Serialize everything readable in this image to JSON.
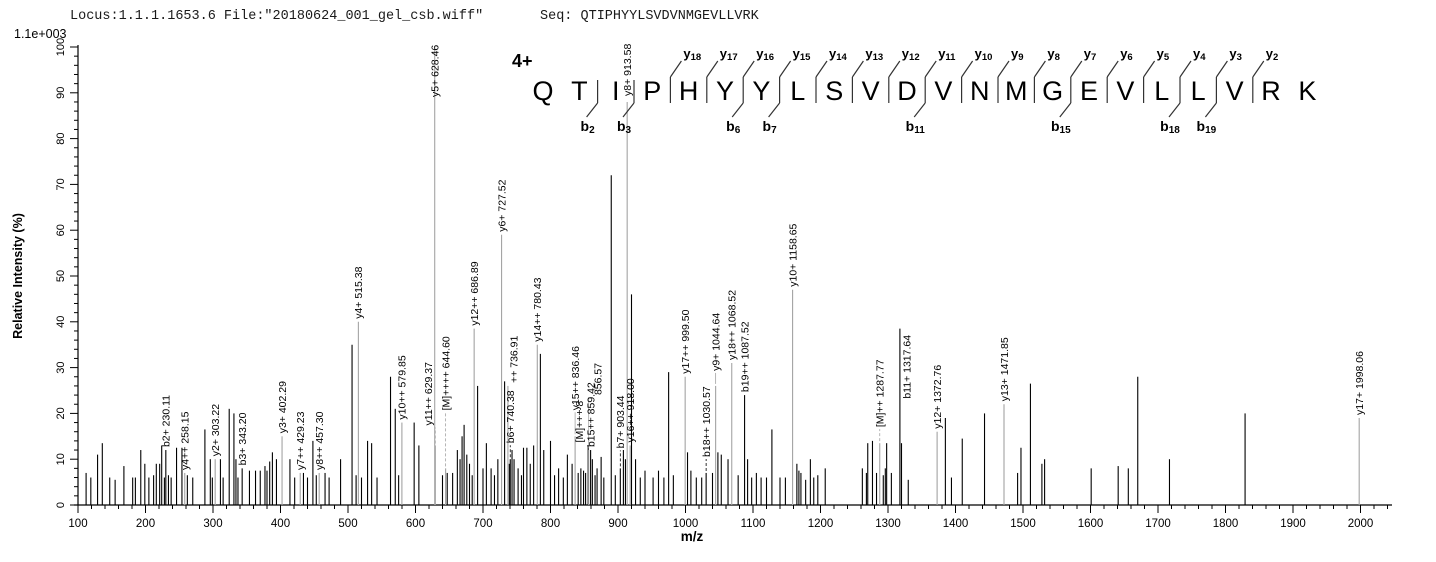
{
  "header": {
    "locus": "Locus:1.1.1.1653.6 File:\"20180624_001_gel_csb.wiff\"",
    "seq": "Seq: QTIPHYYLSVDVNMGEVLLVRK"
  },
  "scale_label": "1.1e+003",
  "charge_label": "4+",
  "sequence": {
    "residues": [
      "Q",
      "T",
      "I",
      "P",
      "H",
      "Y",
      "Y",
      "L",
      "S",
      "V",
      "D",
      "V",
      "N",
      "M",
      "G",
      "E",
      "V",
      "L",
      "L",
      "V",
      "R",
      "K"
    ],
    "y_ions": [
      {
        "n": 18,
        "gap": 3
      },
      {
        "n": 17,
        "gap": 4
      },
      {
        "n": 16,
        "gap": 5
      },
      {
        "n": 15,
        "gap": 6
      },
      {
        "n": 14,
        "gap": 7
      },
      {
        "n": 13,
        "gap": 8
      },
      {
        "n": 12,
        "gap": 9
      },
      {
        "n": 11,
        "gap": 10
      },
      {
        "n": 10,
        "gap": 11
      },
      {
        "n": 9,
        "gap": 12
      },
      {
        "n": 8,
        "gap": 13
      },
      {
        "n": 7,
        "gap": 14
      },
      {
        "n": 6,
        "gap": 15
      },
      {
        "n": 5,
        "gap": 16
      },
      {
        "n": 4,
        "gap": 17
      },
      {
        "n": 3,
        "gap": 18
      },
      {
        "n": 2,
        "gap": 19
      }
    ],
    "b_ions": [
      {
        "n": 2,
        "gap": 1
      },
      {
        "n": 3,
        "gap": 2
      },
      {
        "n": 6,
        "gap": 5
      },
      {
        "n": 7,
        "gap": 6
      },
      {
        "n": 11,
        "gap": 10
      },
      {
        "n": 15,
        "gap": 14
      },
      {
        "n": 18,
        "gap": 17
      },
      {
        "n": 19,
        "gap": 18
      }
    ]
  },
  "chart_data": {
    "type": "bar",
    "xlabel": "m/z",
    "ylabel": "Relative  Intensity (%)",
    "xlim": [
      100,
      2040
    ],
    "ylim": [
      0,
      100
    ],
    "x_major": 100,
    "x_minor": 20,
    "y_major": 10,
    "y_minor": 2,
    "colors": {
      "b_ion": "#000000",
      "y_ion": "#a3a3a3"
    },
    "peaks": [
      {
        "m": 230.11,
        "i": 12,
        "c": "k",
        "l": "b2+ 230.11"
      },
      {
        "m": 258.15,
        "i": 7,
        "c": "g",
        "l": "y4++ 258.15"
      },
      {
        "m": 303.22,
        "i": 10,
        "c": "g",
        "l": "y2+ 303.22"
      },
      {
        "m": 343.2,
        "i": 8,
        "c": "k",
        "l": "b3+ 343.20"
      },
      {
        "m": 402.29,
        "i": 15,
        "c": "g",
        "l": "y3+ 402.29"
      },
      {
        "m": 429.23,
        "i": 7,
        "c": "g",
        "l": "y7++ 429.23"
      },
      {
        "m": 457.3,
        "i": 7,
        "c": "g",
        "l": "y8++ 457.30"
      },
      {
        "m": 515.38,
        "i": 40,
        "c": "g",
        "l": "y4+ 515.38"
      },
      {
        "m": 579.85,
        "i": 18,
        "c": "g",
        "l": "y10++ 579.85"
      },
      {
        "m": 628.46,
        "i": 100,
        "c": "g",
        "l": "y5+ 628.46",
        "lift": -50
      },
      {
        "m": 629.37,
        "i": 13,
        "c": "g",
        "l": "y11++ 629.37",
        "dash": 1,
        "lift": 20,
        "dx": -7
      },
      {
        "m": 644.6,
        "i": 8,
        "c": "g",
        "l": "[M]++++ 644.60",
        "dash": 1,
        "lift": 58
      },
      {
        "m": 686.89,
        "i": 38.5,
        "c": "g",
        "l": "y12++ 686.89"
      },
      {
        "m": 727.52,
        "i": 59,
        "c": "g",
        "l": "y6+ 727.52"
      },
      {
        "m": 736.91,
        "i": 26,
        "c": "g",
        "l": "++ 736.91",
        "dx": 6
      },
      {
        "m": 740.38,
        "i": 10,
        "c": "k",
        "l": "b6+ 740.38",
        "dash": 1,
        "lift": 16
      },
      {
        "m": 780.43,
        "i": 35,
        "c": "g",
        "l": "y14++ 780.43"
      },
      {
        "m": 836.46,
        "i": 15,
        "c": "g",
        "l": "y15++ 836.46",
        "lift": 26
      },
      {
        "m": 855.8,
        "i": 13,
        "c": "k",
        "l": "[M]+++ 8",
        "dx": -9
      },
      {
        "m": 856.57,
        "i": 12,
        "c": "g",
        "l": "856.57",
        "lift": 55,
        "dx": 9
      },
      {
        "m": 859.42,
        "i": 12,
        "c": "k",
        "l": "b15++ 859.42"
      },
      {
        "m": 903.44,
        "i": 8,
        "c": "k",
        "l": "b7+ 903.44",
        "dash": 1,
        "lift": 20
      },
      {
        "m": 913.58,
        "i": 88,
        "c": "g",
        "l": "y8+ 913.58",
        "lift": 6
      },
      {
        "m": 918.0,
        "i": 13,
        "c": "g",
        "l": "y16++ 918.00"
      },
      {
        "m": 999.5,
        "i": 28,
        "c": "g",
        "l": "y17++ 999.50"
      },
      {
        "m": 1030.57,
        "i": 7,
        "c": "k",
        "l": "b18++ 1030.57",
        "dash": 1,
        "lift": 16
      },
      {
        "m": 1044.64,
        "i": 26,
        "c": "g",
        "l": "y9+ 1044.64",
        "lift": 15
      },
      {
        "m": 1068.52,
        "i": 31,
        "c": "g",
        "l": "y18++ 1068.52"
      },
      {
        "m": 1087.52,
        "i": 24,
        "c": "k",
        "l": "b19++ 1087.52"
      },
      {
        "m": 1158.65,
        "i": 47,
        "c": "g",
        "l": "y10+ 1158.65"
      },
      {
        "m": 1287.77,
        "i": 13.5,
        "c": "g",
        "l": "[M]++ 1287.77",
        "dash": 1,
        "lift": 16
      },
      {
        "m": 1317.64,
        "i": 38.5,
        "c": "k",
        "l": "b11+ 1317.64",
        "lift": -70,
        "dx": 7
      },
      {
        "m": 1372.76,
        "i": 16,
        "c": "g",
        "l": "y12+ 1372.76"
      },
      {
        "m": 1471.85,
        "i": 22,
        "c": "g",
        "l": "y13+ 1471.85"
      },
      {
        "m": 1998.06,
        "i": 19,
        "c": "g",
        "l": "y17+ 1998.06"
      },
      {
        "m": 112,
        "i": 7
      },
      {
        "m": 119,
        "i": 6
      },
      {
        "m": 129,
        "i": 11
      },
      {
        "m": 136,
        "i": 13.5
      },
      {
        "m": 147,
        "i": 6
      },
      {
        "m": 155,
        "i": 5.5
      },
      {
        "m": 168,
        "i": 8.5
      },
      {
        "m": 181,
        "i": 6
      },
      {
        "m": 185,
        "i": 6
      },
      {
        "m": 193,
        "i": 12
      },
      {
        "m": 199,
        "i": 9
      },
      {
        "m": 205,
        "i": 6
      },
      {
        "m": 212,
        "i": 6.5
      },
      {
        "m": 216,
        "i": 9
      },
      {
        "m": 221,
        "i": 9
      },
      {
        "m": 224,
        "i": 13
      },
      {
        "m": 228,
        "i": 6
      },
      {
        "m": 234,
        "i": 6.5
      },
      {
        "m": 238,
        "i": 6
      },
      {
        "m": 246,
        "i": 12.5
      },
      {
        "m": 254,
        "i": 12.5
      },
      {
        "m": 262,
        "i": 6.5
      },
      {
        "m": 270,
        "i": 6
      },
      {
        "m": 288,
        "i": 16.5
      },
      {
        "m": 296,
        "i": 10
      },
      {
        "m": 299,
        "i": 6
      },
      {
        "m": 311,
        "i": 10
      },
      {
        "m": 315,
        "i": 6
      },
      {
        "m": 324,
        "i": 21
      },
      {
        "m": 331,
        "i": 20
      },
      {
        "m": 334,
        "i": 10
      },
      {
        "m": 337,
        "i": 6
      },
      {
        "m": 354,
        "i": 7.5
      },
      {
        "m": 363,
        "i": 7.5
      },
      {
        "m": 370,
        "i": 7.5
      },
      {
        "m": 377,
        "i": 8.5
      },
      {
        "m": 380,
        "i": 7.5
      },
      {
        "m": 384,
        "i": 9.5
      },
      {
        "m": 388,
        "i": 11.5
      },
      {
        "m": 394,
        "i": 10
      },
      {
        "m": 414,
        "i": 10
      },
      {
        "m": 421,
        "i": 6
      },
      {
        "m": 434,
        "i": 7
      },
      {
        "m": 440,
        "i": 6
      },
      {
        "m": 448,
        "i": 14
      },
      {
        "m": 453,
        "i": 6.5
      },
      {
        "m": 466,
        "i": 7
      },
      {
        "m": 472,
        "i": 6
      },
      {
        "m": 489,
        "i": 10
      },
      {
        "m": 506,
        "i": 35
      },
      {
        "m": 512,
        "i": 6.5
      },
      {
        "m": 520,
        "i": 6
      },
      {
        "m": 529,
        "i": 14
      },
      {
        "m": 535,
        "i": 13.5
      },
      {
        "m": 543,
        "i": 6
      },
      {
        "m": 563,
        "i": 28
      },
      {
        "m": 570,
        "i": 21
      },
      {
        "m": 575,
        "i": 6.5
      },
      {
        "m": 598,
        "i": 18
      },
      {
        "m": 605,
        "i": 13
      },
      {
        "m": 640,
        "i": 6.5
      },
      {
        "m": 647,
        "i": 7
      },
      {
        "m": 655,
        "i": 7
      },
      {
        "m": 662,
        "i": 12
      },
      {
        "m": 666,
        "i": 10
      },
      {
        "m": 669,
        "i": 15
      },
      {
        "m": 672,
        "i": 17.5
      },
      {
        "m": 676,
        "i": 11
      },
      {
        "m": 680,
        "i": 9
      },
      {
        "m": 684,
        "i": 6.5
      },
      {
        "m": 692,
        "i": 26
      },
      {
        "m": 700,
        "i": 8
      },
      {
        "m": 705,
        "i": 13.5
      },
      {
        "m": 712,
        "i": 8
      },
      {
        "m": 717,
        "i": 6.5
      },
      {
        "m": 722,
        "i": 10
      },
      {
        "m": 732,
        "i": 27
      },
      {
        "m": 739,
        "i": 9
      },
      {
        "m": 743,
        "i": 12
      },
      {
        "m": 746,
        "i": 10
      },
      {
        "m": 752,
        "i": 8
      },
      {
        "m": 757,
        "i": 6.5
      },
      {
        "m": 760,
        "i": 12.5
      },
      {
        "m": 765,
        "i": 12.5
      },
      {
        "m": 770,
        "i": 9
      },
      {
        "m": 775,
        "i": 13
      },
      {
        "m": 785,
        "i": 33
      },
      {
        "m": 790,
        "i": 12
      },
      {
        "m": 800,
        "i": 14
      },
      {
        "m": 806,
        "i": 6.5
      },
      {
        "m": 812,
        "i": 8
      },
      {
        "m": 819,
        "i": 6
      },
      {
        "m": 825,
        "i": 11
      },
      {
        "m": 832,
        "i": 9
      },
      {
        "m": 841,
        "i": 7
      },
      {
        "m": 845,
        "i": 8
      },
      {
        "m": 849,
        "i": 7.5
      },
      {
        "m": 852,
        "i": 7
      },
      {
        "m": 862,
        "i": 10
      },
      {
        "m": 866,
        "i": 6.5
      },
      {
        "m": 869,
        "i": 8
      },
      {
        "m": 875,
        "i": 10.5
      },
      {
        "m": 879,
        "i": 6
      },
      {
        "m": 890,
        "i": 72
      },
      {
        "m": 896,
        "i": 6.5
      },
      {
        "m": 908,
        "i": 12
      },
      {
        "m": 911,
        "i": 10
      },
      {
        "m": 920,
        "i": 46
      },
      {
        "m": 926,
        "i": 10
      },
      {
        "m": 933,
        "i": 6
      },
      {
        "m": 940,
        "i": 7.5
      },
      {
        "m": 952,
        "i": 6
      },
      {
        "m": 960,
        "i": 7.5
      },
      {
        "m": 968,
        "i": 6
      },
      {
        "m": 975,
        "i": 29
      },
      {
        "m": 982,
        "i": 6.5
      },
      {
        "m": 1003,
        "i": 11.5
      },
      {
        "m": 1008,
        "i": 7.5
      },
      {
        "m": 1016,
        "i": 6
      },
      {
        "m": 1024,
        "i": 6
      },
      {
        "m": 1040,
        "i": 7
      },
      {
        "m": 1048,
        "i": 11.5
      },
      {
        "m": 1053,
        "i": 11
      },
      {
        "m": 1063,
        "i": 10
      },
      {
        "m": 1078,
        "i": 6.5
      },
      {
        "m": 1092,
        "i": 10
      },
      {
        "m": 1098,
        "i": 6
      },
      {
        "m": 1105,
        "i": 7
      },
      {
        "m": 1112,
        "i": 6
      },
      {
        "m": 1120,
        "i": 6
      },
      {
        "m": 1128,
        "i": 16.5
      },
      {
        "m": 1140,
        "i": 6
      },
      {
        "m": 1148,
        "i": 6
      },
      {
        "m": 1165,
        "i": 9
      },
      {
        "m": 1168,
        "i": 7.5
      },
      {
        "m": 1171,
        "i": 7
      },
      {
        "m": 1178,
        "i": 5.5
      },
      {
        "m": 1185,
        "i": 10
      },
      {
        "m": 1190,
        "i": 6
      },
      {
        "m": 1196,
        "i": 6.5
      },
      {
        "m": 1207,
        "i": 8
      },
      {
        "m": 1262,
        "i": 8
      },
      {
        "m": 1268,
        "i": 7
      },
      {
        "m": 1270,
        "i": 13.5
      },
      {
        "m": 1277,
        "i": 14
      },
      {
        "m": 1283,
        "i": 7
      },
      {
        "m": 1293,
        "i": 6.5
      },
      {
        "m": 1296,
        "i": 8
      },
      {
        "m": 1298,
        "i": 13.5
      },
      {
        "m": 1305,
        "i": 7
      },
      {
        "m": 1320,
        "i": 13.5
      },
      {
        "m": 1330,
        "i": 5.5
      },
      {
        "m": 1385,
        "i": 19
      },
      {
        "m": 1394,
        "i": 6
      },
      {
        "m": 1410,
        "i": 14.5
      },
      {
        "m": 1443,
        "i": 20
      },
      {
        "m": 1492,
        "i": 7
      },
      {
        "m": 1497,
        "i": 12.5
      },
      {
        "m": 1511,
        "i": 26.5
      },
      {
        "m": 1528,
        "i": 9
      },
      {
        "m": 1532,
        "i": 10
      },
      {
        "m": 1601,
        "i": 8
      },
      {
        "m": 1641,
        "i": 8.5
      },
      {
        "m": 1656,
        "i": 8
      },
      {
        "m": 1670,
        "i": 28
      },
      {
        "m": 1717,
        "i": 10
      },
      {
        "m": 1829,
        "i": 20
      }
    ]
  }
}
